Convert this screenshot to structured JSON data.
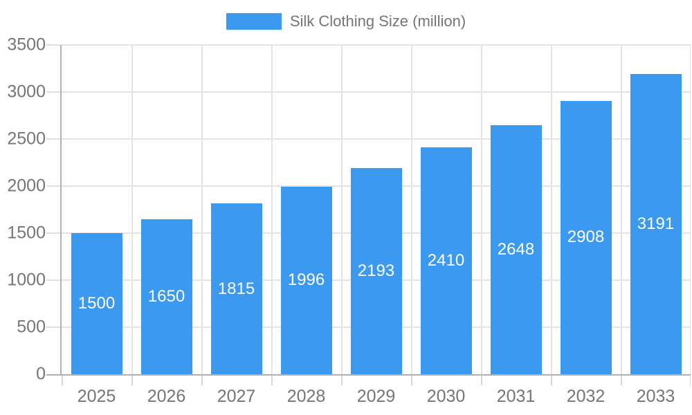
{
  "legend": {
    "label": "Silk Clothing Size (million)"
  },
  "colors": {
    "bar": "#3B99F0",
    "bar_label": "#FFFFFF",
    "axis_text": "#757575",
    "axis_line": "#B0B0B0",
    "gridline": "#E3E3E3"
  },
  "chart_data": {
    "type": "bar",
    "title": "Silk Clothing Size (million)",
    "categories": [
      "2025",
      "2026",
      "2027",
      "2028",
      "2029",
      "2030",
      "2031",
      "2032",
      "2033"
    ],
    "values": [
      1500,
      1650,
      1815,
      1996,
      2193,
      2410,
      2648,
      2908,
      3191
    ],
    "xlabel": "",
    "ylabel": "",
    "ylim": [
      0,
      3500
    ],
    "yticks": [
      0,
      500,
      1000,
      1500,
      2000,
      2500,
      3000,
      3500
    ],
    "grid": true,
    "legend_position": "top",
    "value_label_position": "inside-center"
  }
}
